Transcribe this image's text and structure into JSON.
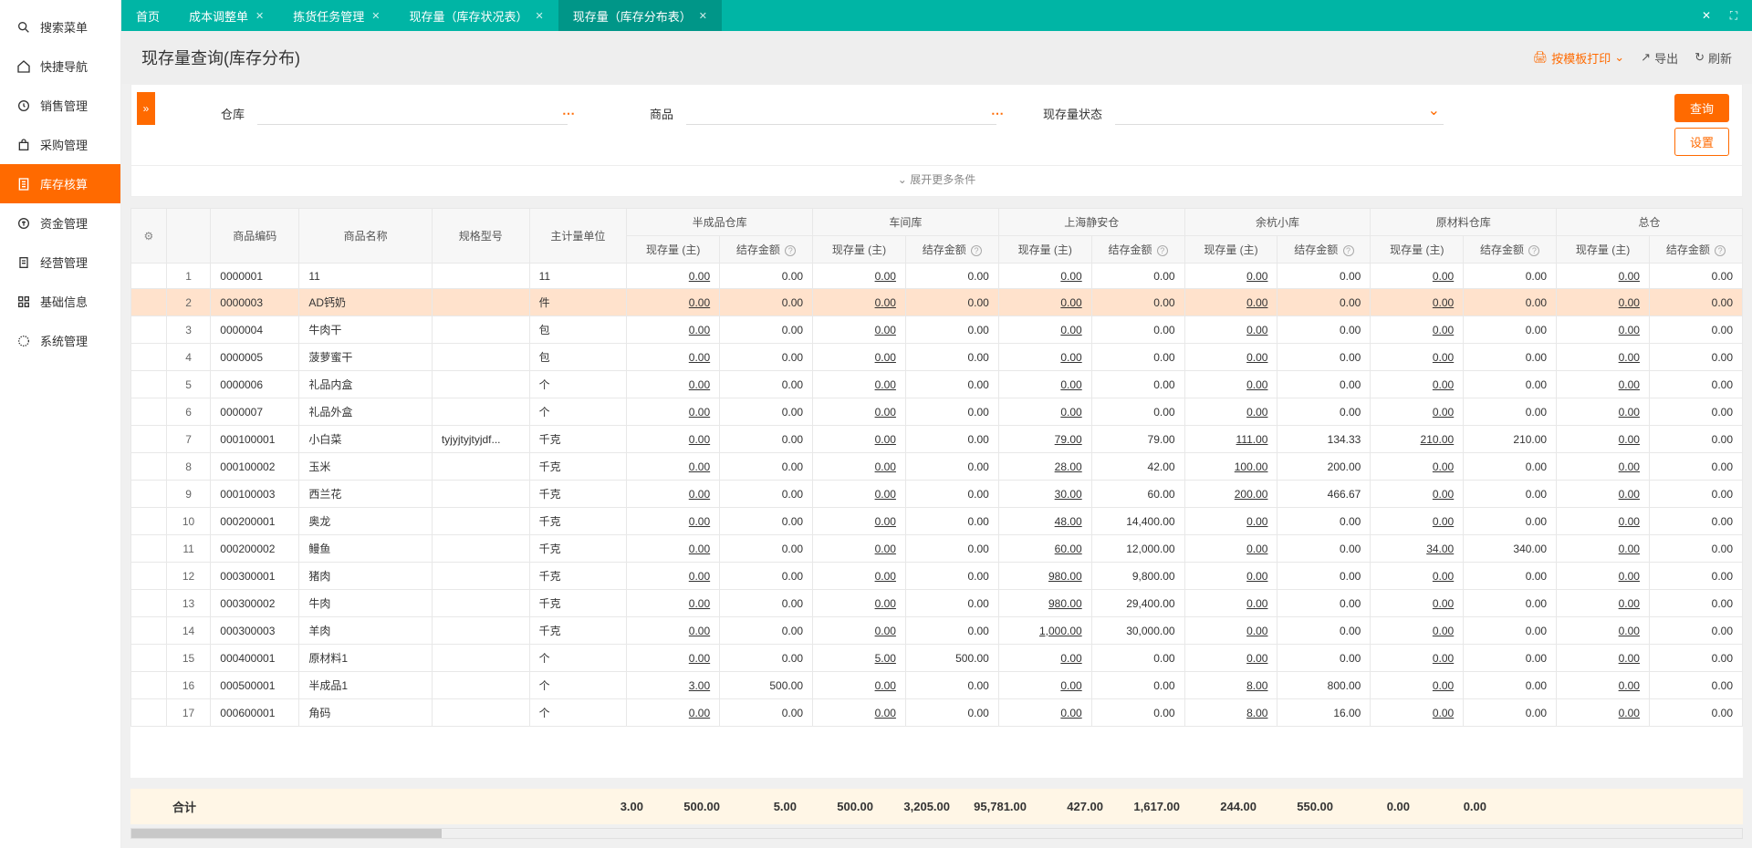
{
  "sidebar": {
    "items": [
      {
        "label": "搜索菜单",
        "icon": "search"
      },
      {
        "label": "快捷导航",
        "icon": "home"
      },
      {
        "label": "销售管理",
        "icon": "badge"
      },
      {
        "label": "采购管理",
        "icon": "bag"
      },
      {
        "label": "库存核算",
        "icon": "calc",
        "active": true
      },
      {
        "label": "资金管理",
        "icon": "coin"
      },
      {
        "label": "经营管理",
        "icon": "doc"
      },
      {
        "label": "基础信息",
        "icon": "grid"
      },
      {
        "label": "系统管理",
        "icon": "gear-dashed"
      }
    ]
  },
  "tabs": [
    {
      "label": "首页",
      "closable": false
    },
    {
      "label": "成本调整单",
      "closable": true
    },
    {
      "label": "拣货任务管理",
      "closable": true
    },
    {
      "label": "现存量（库存状况表）",
      "closable": true
    },
    {
      "label": "现存量（库存分布表）",
      "closable": true,
      "active": true
    }
  ],
  "page": {
    "title": "现存量查询(库存分布)",
    "actions": {
      "print": "按模板打印",
      "export": "导出",
      "refresh": "刷新"
    }
  },
  "filters": {
    "warehouse_label": "仓库",
    "product_label": "商品",
    "status_label": "现存量状态",
    "query_btn": "查询",
    "setting_btn": "设置",
    "expand_more": "展开更多条件"
  },
  "table": {
    "groups": [
      "半成品仓库",
      "车间库",
      "上海静安仓",
      "余杭小库",
      "原材料仓库",
      "总仓"
    ],
    "base_cols": {
      "code": "商品编码",
      "name": "商品名称",
      "spec": "规格型号",
      "unit": "主计量单位"
    },
    "metric_cols": {
      "qty": "现存量 (主)",
      "amt": "结存金额"
    },
    "rows": [
      {
        "idx": "1",
        "code": "0000001",
        "name": "11",
        "spec": "",
        "unit": "11",
        "vals": [
          "0.00",
          "0.00",
          "0.00",
          "0.00",
          "0.00",
          "0.00",
          "0.00",
          "0.00",
          "0.00",
          "0.00",
          "0.00",
          "0.00"
        ]
      },
      {
        "idx": "2",
        "code": "0000003",
        "name": "AD钙奶",
        "spec": "",
        "unit": "件",
        "hl": true,
        "vals": [
          "0.00",
          "0.00",
          "0.00",
          "0.00",
          "0.00",
          "0.00",
          "0.00",
          "0.00",
          "0.00",
          "0.00",
          "0.00",
          "0.00"
        ]
      },
      {
        "idx": "3",
        "code": "0000004",
        "name": "牛肉干",
        "spec": "",
        "unit": "包",
        "vals": [
          "0.00",
          "0.00",
          "0.00",
          "0.00",
          "0.00",
          "0.00",
          "0.00",
          "0.00",
          "0.00",
          "0.00",
          "0.00",
          "0.00"
        ]
      },
      {
        "idx": "4",
        "code": "0000005",
        "name": "菠萝蜜干",
        "spec": "",
        "unit": "包",
        "vals": [
          "0.00",
          "0.00",
          "0.00",
          "0.00",
          "0.00",
          "0.00",
          "0.00",
          "0.00",
          "0.00",
          "0.00",
          "0.00",
          "0.00"
        ]
      },
      {
        "idx": "5",
        "code": "0000006",
        "name": "礼品内盒",
        "spec": "",
        "unit": "个",
        "vals": [
          "0.00",
          "0.00",
          "0.00",
          "0.00",
          "0.00",
          "0.00",
          "0.00",
          "0.00",
          "0.00",
          "0.00",
          "0.00",
          "0.00"
        ]
      },
      {
        "idx": "6",
        "code": "0000007",
        "name": "礼品外盒",
        "spec": "",
        "unit": "个",
        "vals": [
          "0.00",
          "0.00",
          "0.00",
          "0.00",
          "0.00",
          "0.00",
          "0.00",
          "0.00",
          "0.00",
          "0.00",
          "0.00",
          "0.00"
        ]
      },
      {
        "idx": "7",
        "code": "000100001",
        "name": "小白菜",
        "spec": "tyjyjtyjtyjdf...",
        "unit": "千克",
        "vals": [
          "0.00",
          "0.00",
          "0.00",
          "0.00",
          "79.00",
          "79.00",
          "111.00",
          "134.33",
          "210.00",
          "210.00",
          "0.00",
          "0.00"
        ]
      },
      {
        "idx": "8",
        "code": "000100002",
        "name": "玉米",
        "spec": "",
        "unit": "千克",
        "vals": [
          "0.00",
          "0.00",
          "0.00",
          "0.00",
          "28.00",
          "42.00",
          "100.00",
          "200.00",
          "0.00",
          "0.00",
          "0.00",
          "0.00"
        ]
      },
      {
        "idx": "9",
        "code": "000100003",
        "name": "西兰花",
        "spec": "",
        "unit": "千克",
        "vals": [
          "0.00",
          "0.00",
          "0.00",
          "0.00",
          "30.00",
          "60.00",
          "200.00",
          "466.67",
          "0.00",
          "0.00",
          "0.00",
          "0.00"
        ]
      },
      {
        "idx": "10",
        "code": "000200001",
        "name": "奥龙",
        "spec": "",
        "unit": "千克",
        "vals": [
          "0.00",
          "0.00",
          "0.00",
          "0.00",
          "48.00",
          "14,400.00",
          "0.00",
          "0.00",
          "0.00",
          "0.00",
          "0.00",
          "0.00"
        ]
      },
      {
        "idx": "11",
        "code": "000200002",
        "name": "鳗鱼",
        "spec": "",
        "unit": "千克",
        "vals": [
          "0.00",
          "0.00",
          "0.00",
          "0.00",
          "60.00",
          "12,000.00",
          "0.00",
          "0.00",
          "34.00",
          "340.00",
          "0.00",
          "0.00"
        ]
      },
      {
        "idx": "12",
        "code": "000300001",
        "name": "猪肉",
        "spec": "",
        "unit": "千克",
        "vals": [
          "0.00",
          "0.00",
          "0.00",
          "0.00",
          "980.00",
          "9,800.00",
          "0.00",
          "0.00",
          "0.00",
          "0.00",
          "0.00",
          "0.00"
        ]
      },
      {
        "idx": "13",
        "code": "000300002",
        "name": "牛肉",
        "spec": "",
        "unit": "千克",
        "vals": [
          "0.00",
          "0.00",
          "0.00",
          "0.00",
          "980.00",
          "29,400.00",
          "0.00",
          "0.00",
          "0.00",
          "0.00",
          "0.00",
          "0.00"
        ]
      },
      {
        "idx": "14",
        "code": "000300003",
        "name": "羊肉",
        "spec": "",
        "unit": "千克",
        "vals": [
          "0.00",
          "0.00",
          "0.00",
          "0.00",
          "1,000.00",
          "30,000.00",
          "0.00",
          "0.00",
          "0.00",
          "0.00",
          "0.00",
          "0.00"
        ]
      },
      {
        "idx": "15",
        "code": "000400001",
        "name": "原材料1",
        "spec": "",
        "unit": "个",
        "vals": [
          "0.00",
          "0.00",
          "5.00",
          "500.00",
          "0.00",
          "0.00",
          "0.00",
          "0.00",
          "0.00",
          "0.00",
          "0.00",
          "0.00"
        ]
      },
      {
        "idx": "16",
        "code": "000500001",
        "name": "半成品1",
        "spec": "",
        "unit": "个",
        "vals": [
          "3.00",
          "500.00",
          "0.00",
          "0.00",
          "0.00",
          "0.00",
          "8.00",
          "800.00",
          "0.00",
          "0.00",
          "0.00",
          "0.00"
        ]
      },
      {
        "idx": "17",
        "code": "000600001",
        "name": "角码",
        "spec": "",
        "unit": "个",
        "vals": [
          "0.00",
          "0.00",
          "0.00",
          "0.00",
          "0.00",
          "0.00",
          "8.00",
          "16.00",
          "0.00",
          "0.00",
          "0.00",
          "0.00"
        ]
      }
    ],
    "totals": {
      "label": "合计",
      "vals": [
        "3.00",
        "500.00",
        "5.00",
        "500.00",
        "3,205.00",
        "95,781.00",
        "427.00",
        "1,617.00",
        "244.00",
        "550.00",
        "0.00",
        "0.00"
      ]
    },
    "col_widths": {
      "gear": 32,
      "idx": 40,
      "code": 80,
      "name": 120,
      "spec": 88,
      "unit": 88,
      "metric": 84
    }
  },
  "colors": {
    "accent": "#ff6a00",
    "teal": "#00b5a5",
    "teal_dark": "#009688",
    "hl": "#ffe2cc",
    "total_bg": "#fff6e6"
  }
}
